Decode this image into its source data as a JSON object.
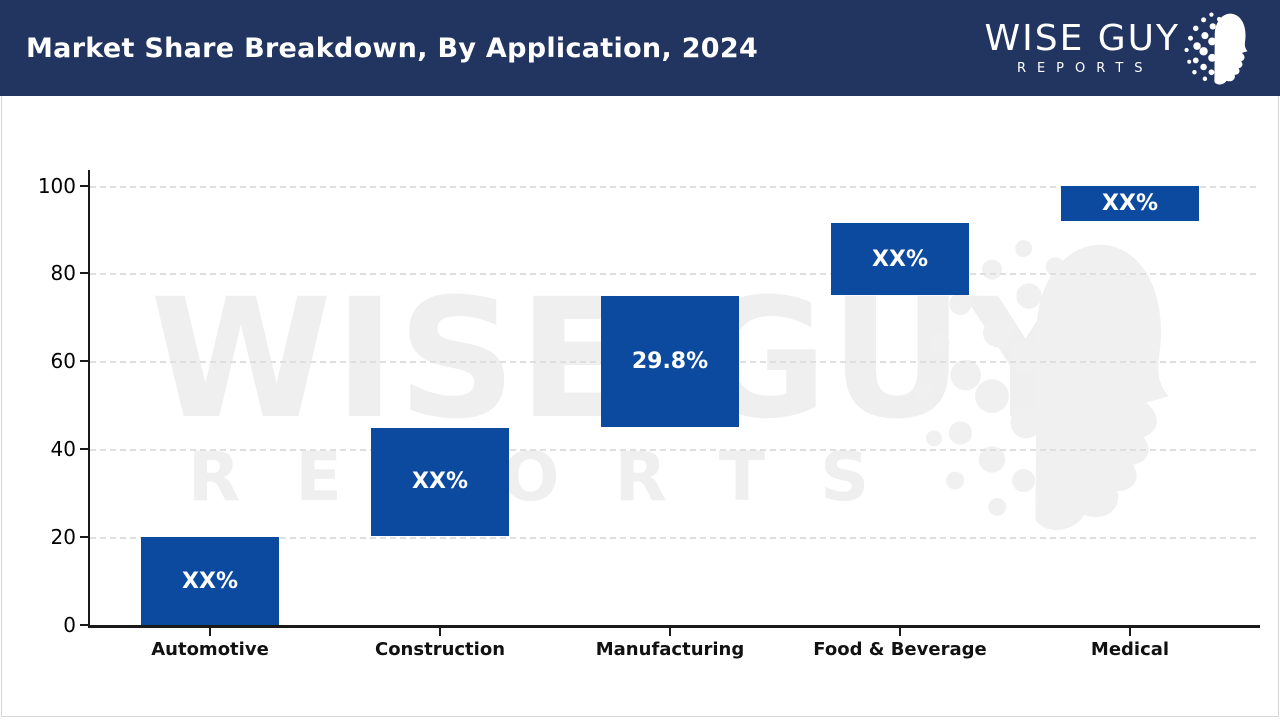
{
  "header": {
    "title": "Market Share Breakdown, By Application, 2024",
    "bg_color": "#223560",
    "logo": {
      "name": "WISE GUY",
      "tagline": "REPORTS"
    }
  },
  "watermark": {
    "name": "WISE GUY",
    "tagline": "REPORTS"
  },
  "chart_data": {
    "type": "bar",
    "subtype": "floating-waterfall",
    "title": "Market Share Breakdown, By Application, 2024",
    "categories": [
      "Automotive",
      "Construction",
      "Manufacturing",
      "Food & Beverage",
      "Medical"
    ],
    "segments": [
      {
        "category": "Automotive",
        "start": 0,
        "end": 20,
        "label": "XX%"
      },
      {
        "category": "Construction",
        "start": 20.3,
        "end": 44.8,
        "label": "XX%"
      },
      {
        "category": "Manufacturing",
        "start": 45,
        "end": 74.8,
        "label": "29.8%"
      },
      {
        "category": "Food & Beverage",
        "start": 75,
        "end": 91.5,
        "label": "XX%"
      },
      {
        "category": "Medical",
        "start": 91.9,
        "end": 100,
        "label": "XX%"
      }
    ],
    "yticks": [
      0,
      20,
      40,
      60,
      80,
      100
    ],
    "ylim": [
      0,
      105
    ],
    "xlabel": "",
    "ylabel": "",
    "grid": true,
    "legend": false,
    "bar_color": "#0c4aa0",
    "bar_label_color": "#ffffff",
    "gridline_color": "#dfdfdf",
    "axis_color": "#1a1a1a",
    "tick_label_color": "#000000"
  }
}
